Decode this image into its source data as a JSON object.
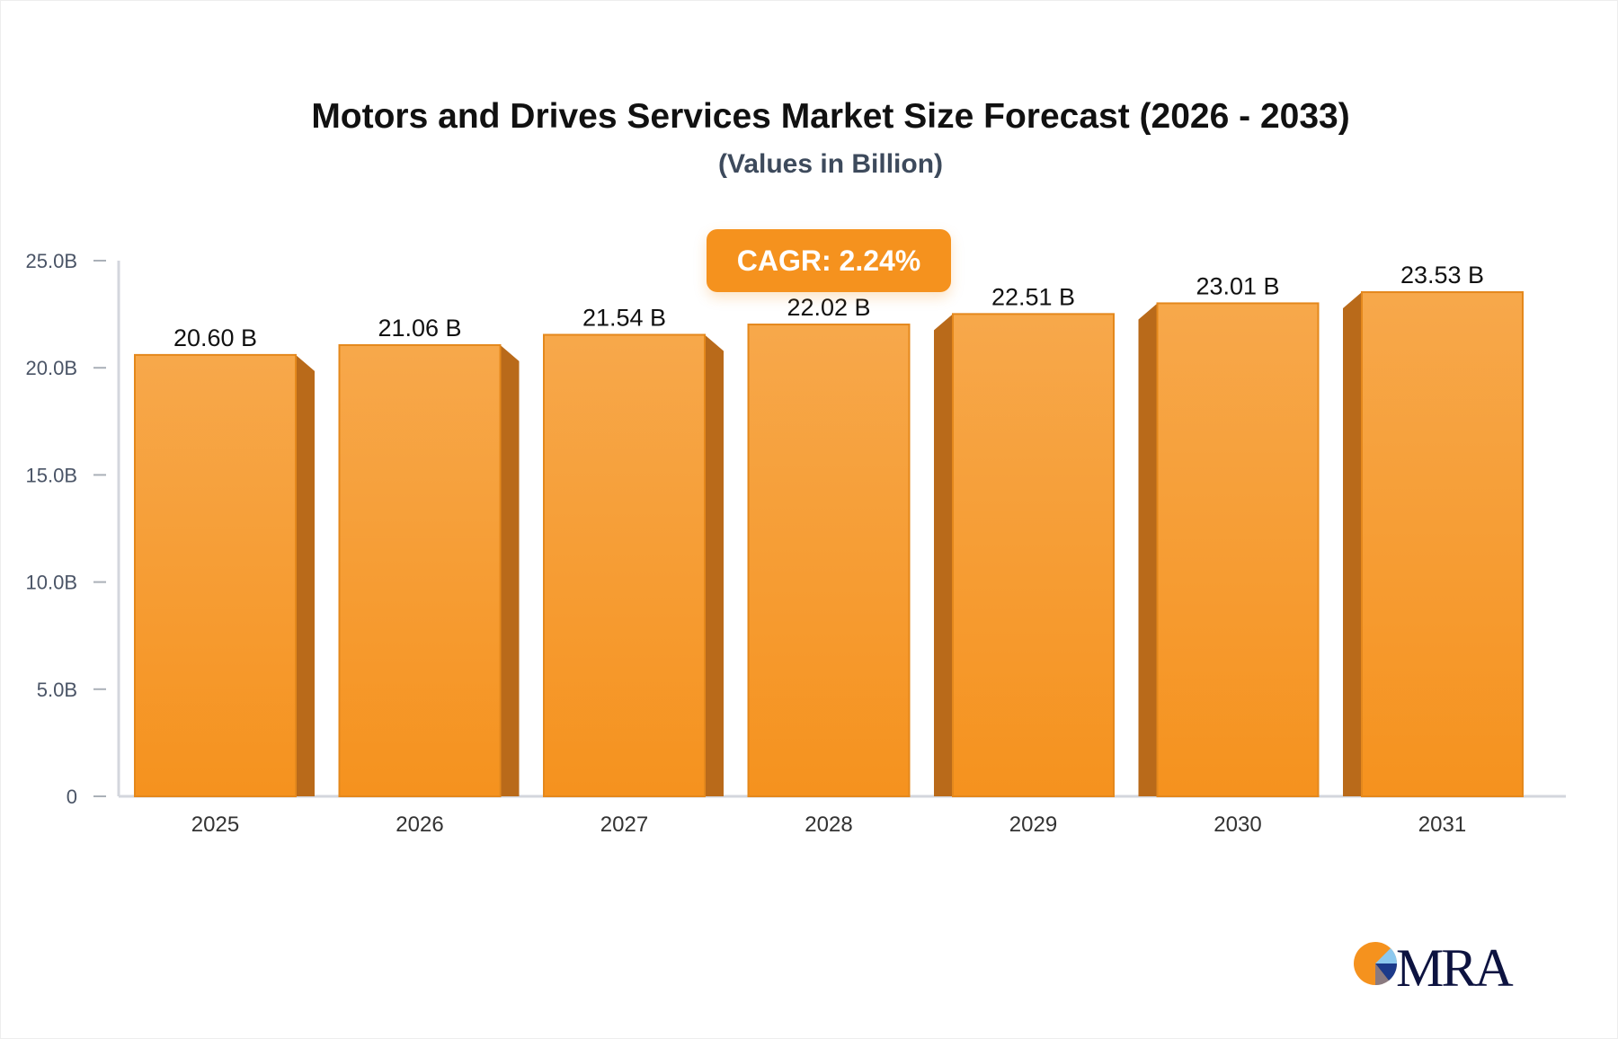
{
  "chart_data": {
    "type": "bar",
    "title": "Motors and Drives Services Market Size Forecast (2026 - 2033)",
    "subtitle": "(Values in Billion)",
    "categories": [
      "2025",
      "2026",
      "2027",
      "2028",
      "2029",
      "2030",
      "2031"
    ],
    "values": [
      20.6,
      21.06,
      21.54,
      22.02,
      22.51,
      23.01,
      23.53
    ],
    "data_labels": [
      "20.60 B",
      "21.06 B",
      "21.54 B",
      "22.02 B",
      "22.51 B",
      "23.01 B",
      "23.53 B"
    ],
    "ylim": [
      0,
      25
    ],
    "yticks": [
      0,
      5,
      10,
      15,
      20,
      25
    ],
    "ytick_labels": [
      "0",
      "5.0B",
      "10.0B",
      "15.0B",
      "20.0B",
      "25.0B"
    ],
    "grid": false,
    "annotation": "CAGR: 2.24%",
    "colors": {
      "bar_top": "#f7a84b",
      "bar_bottom": "#f5921e",
      "bar_side": "#b96a1a",
      "badge": "#f5921e"
    }
  },
  "logo": {
    "text": "MRA"
  }
}
